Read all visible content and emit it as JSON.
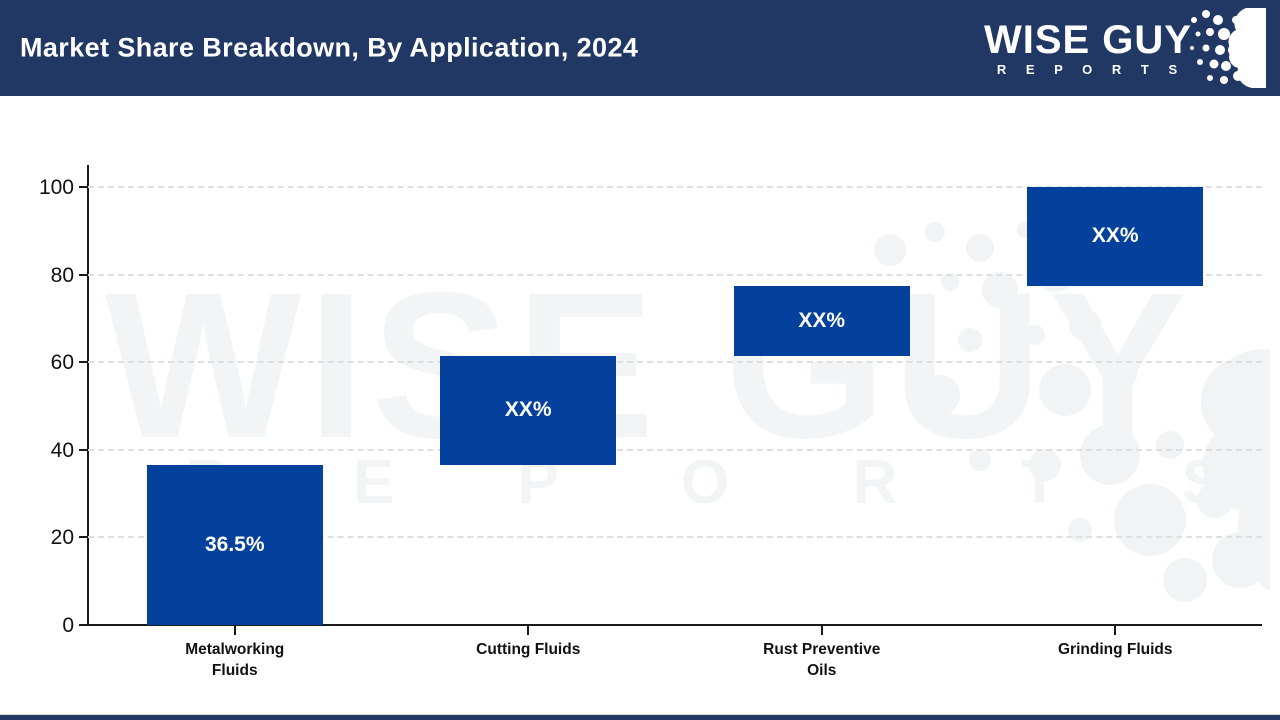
{
  "header": {
    "title": "Market Share Breakdown, By Application, 2024",
    "logo": {
      "line1": "WISE GUY",
      "line2": "R E P O R T S"
    }
  },
  "watermark": {
    "line1": "WISE GUY",
    "line2": "R E P O R T S"
  },
  "chart_data": {
    "type": "bar",
    "subtype": "waterfall",
    "title": "Market Share Breakdown, By Application, 2024",
    "categories": [
      "Metalworking Fluids",
      "Cutting Fluids",
      "Rust Preventive Oils",
      "Grinding Fluids"
    ],
    "category_label_lines": [
      [
        "Metalworking",
        "Fluids"
      ],
      [
        "Cutting Fluids"
      ],
      [
        "Rust Preventive",
        "Oils"
      ],
      [
        "Grinding Fluids"
      ]
    ],
    "segments": [
      {
        "category": "Metalworking Fluids",
        "base": 0,
        "top": 36.5,
        "label": "36.5%"
      },
      {
        "category": "Cutting Fluids",
        "base": 36.5,
        "top": 61.5,
        "label": "XX%"
      },
      {
        "category": "Rust Preventive Oils",
        "base": 61.5,
        "top": 77.5,
        "label": "XX%"
      },
      {
        "category": "Grinding Fluids",
        "base": 77.5,
        "top": 100,
        "label": "XX%"
      }
    ],
    "xlabel": "",
    "ylabel": "",
    "ylim": [
      0,
      100
    ],
    "yticks": [
      0,
      20,
      40,
      60,
      80,
      100
    ],
    "grid": "horizontal dashed",
    "legend": "none",
    "bar_color": "#04419c",
    "value_label_color": "#ffffff"
  },
  "colors": {
    "header_bg": "#213864",
    "bar": "#04419c",
    "gridline": "#dfdfdf",
    "axis": "#1a1a1a",
    "watermark": "#f3f4f6",
    "footer_bar": "#213864",
    "hairline": "#d8d8d8"
  }
}
